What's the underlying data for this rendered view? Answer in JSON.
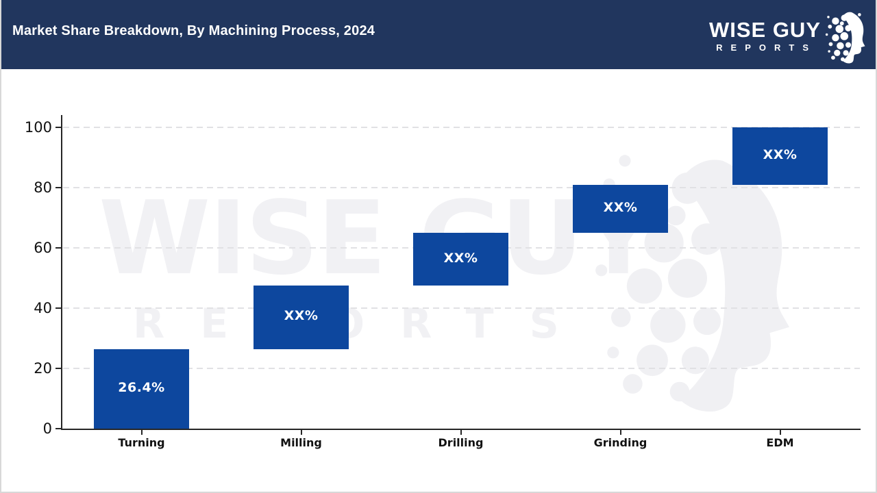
{
  "header": {
    "title": "Market Share Breakdown, By Machining Process, 2024",
    "brand": {
      "name": "WISE GUY",
      "tagline": "REPORTS"
    },
    "bg_color": "#21365e"
  },
  "watermark": {
    "line1": "WISE GUY",
    "line2": "REPORTS"
  },
  "chart_data": {
    "type": "bar",
    "subtype": "waterfall-floating-bars",
    "title": "Market Share Breakdown, By Machining Process, 2024",
    "categories": [
      "Turning",
      "Milling",
      "Drilling",
      "Grinding",
      "EDM"
    ],
    "segments": [
      {
        "category": "Turning",
        "start": 0,
        "end": 26.4,
        "label": "26.4%"
      },
      {
        "category": "Milling",
        "start": 26.4,
        "end": 47.5,
        "label": "XX%"
      },
      {
        "category": "Drilling",
        "start": 47.5,
        "end": 65.0,
        "label": "XX%"
      },
      {
        "category": "Grinding",
        "start": 65.0,
        "end": 81.0,
        "label": "XX%"
      },
      {
        "category": "EDM",
        "start": 81.0,
        "end": 100.0,
        "label": "XX%"
      }
    ],
    "y_ticks": [
      0,
      20,
      40,
      60,
      80,
      100
    ],
    "ylim": [
      0,
      100
    ],
    "xlabel": "",
    "ylabel": "",
    "bar_color": "#0d479e",
    "grid": "horizontal-dashed",
    "legend": "none"
  }
}
